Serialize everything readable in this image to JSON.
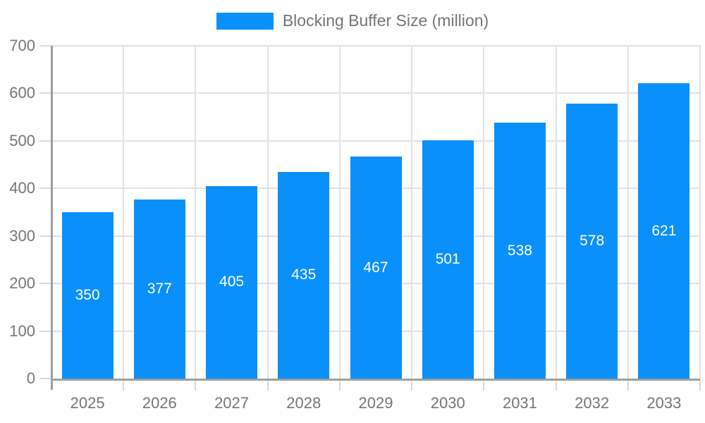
{
  "chart_data": {
    "type": "bar",
    "title": "Blocking Buffer Size (million)",
    "legend": [
      {
        "label": "Blocking Buffer Size (million)",
        "color": "#0a90fa"
      }
    ],
    "categories": [
      "2025",
      "2026",
      "2027",
      "2028",
      "2029",
      "2030",
      "2031",
      "2032",
      "2033"
    ],
    "series": [
      {
        "name": "Blocking Buffer Size (million)",
        "values": [
          350,
          377,
          405,
          435,
          467,
          501,
          538,
          578,
          621
        ]
      }
    ],
    "values": [
      350,
      377,
      405,
      435,
      467,
      501,
      538,
      578,
      621
    ],
    "value_labels_shown_inside_bars": true,
    "xlabel": "",
    "ylabel": "",
    "ylim": [
      0,
      700
    ],
    "yticks": [
      0,
      100,
      200,
      300,
      400,
      500,
      600,
      700
    ],
    "grid": "both",
    "legend_position": "top-center",
    "colors": {
      "bar": "#0a90fa",
      "value_text": "#ffffff",
      "axis_text": "#757575",
      "grid_line": "#e2e2e2",
      "tick_line": "#d9d9d9",
      "axis_line": "#9e9e9e",
      "background": "#ffffff"
    }
  }
}
